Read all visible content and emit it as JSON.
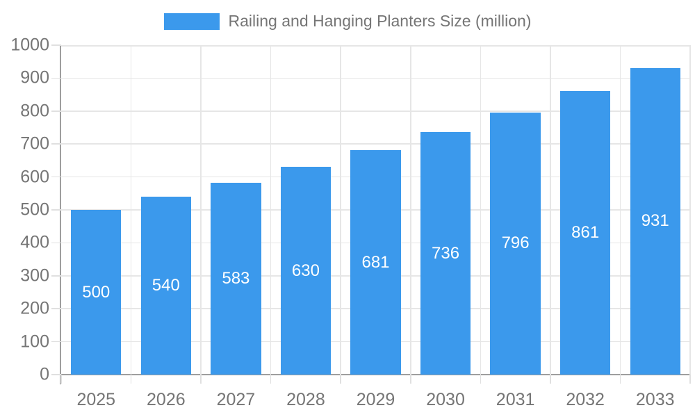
{
  "chart_data": {
    "type": "bar",
    "title": "Railing and Hanging Planters Size (million)",
    "categories": [
      "2025",
      "2026",
      "2027",
      "2028",
      "2029",
      "2030",
      "2031",
      "2032",
      "2033"
    ],
    "series": [
      {
        "name": "Railing and Hanging Planters Size (million)",
        "values": [
          500,
          540,
          583,
          630,
          681,
          736,
          796,
          861,
          931
        ]
      }
    ],
    "xlabel": "",
    "ylabel": "",
    "ylim": [
      0,
      1000
    ],
    "yticks": [
      0,
      100,
      200,
      300,
      400,
      500,
      600,
      700,
      800,
      900,
      1000
    ],
    "grid": true,
    "legend_position": "top-center",
    "bar_value_labels": "inside-center"
  },
  "colors": {
    "bar": "#3B99EC",
    "axis_text": "#757575",
    "legend_text": "#757575",
    "grid_line": "#E6E6E6",
    "axis_line": "#9E9E9E",
    "tick_line": "#E0E0E0",
    "value_label": "#FFFFFF",
    "background": "#FFFFFF"
  }
}
